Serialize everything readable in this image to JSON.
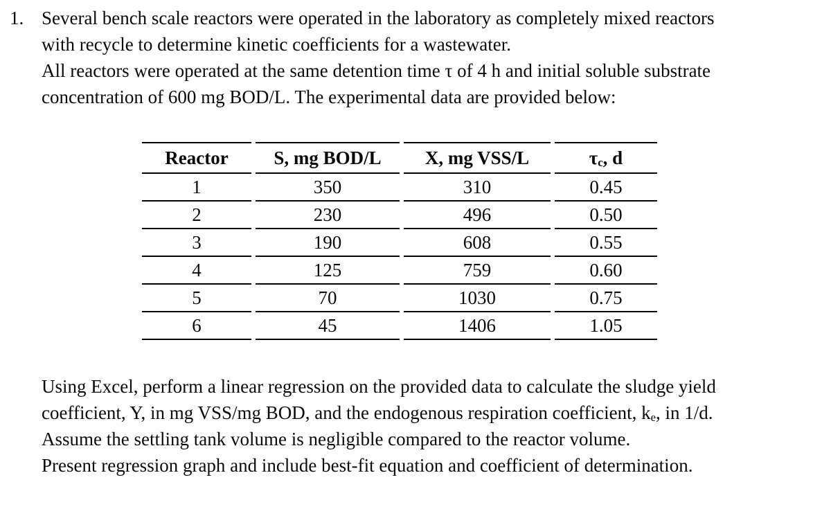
{
  "document": {
    "item_number": "1.",
    "intro": {
      "line1": "Several bench scale reactors were operated in the laboratory as completely mixed reactors",
      "line2": "with recycle to determine kinetic coefficients for a wastewater.",
      "line3": "All reactors were operated at the same detention time τ of 4 h and initial soluble substrate",
      "line4": "concentration of 600 mg BOD/L. The experimental data are provided below:"
    },
    "tasks": {
      "line1": "Using Excel, perform a linear regression on the provided data to calculate the sludge yield",
      "line2_pre": "coefficient, Y, in mg VSS/mg BOD, and the endogenous respiration coefficient, k",
      "line2_sub": "e",
      "line2_post": ", in 1/d.",
      "line3": "Assume the settling tank volume is negligible compared to the reactor volume.",
      "line4": "Present regression graph and include best-fit equation and coefficient of determination."
    }
  },
  "table": {
    "headers": {
      "reactor": "Reactor",
      "substrate": "S, mg BOD/L",
      "biomass": "X, mg VSS/L",
      "srt_symbol": "τ",
      "srt_sub": "c",
      "srt_rest": ", d"
    },
    "rows": [
      [
        "1",
        "350",
        "310",
        "0.45"
      ],
      [
        "2",
        "230",
        "496",
        "0.50"
      ],
      [
        "3",
        "190",
        "608",
        "0.55"
      ],
      [
        "4",
        "125",
        "759",
        "0.60"
      ],
      [
        "5",
        "70",
        "1030",
        "0.75"
      ],
      [
        "6",
        "45",
        "1406",
        "1.05"
      ]
    ]
  }
}
